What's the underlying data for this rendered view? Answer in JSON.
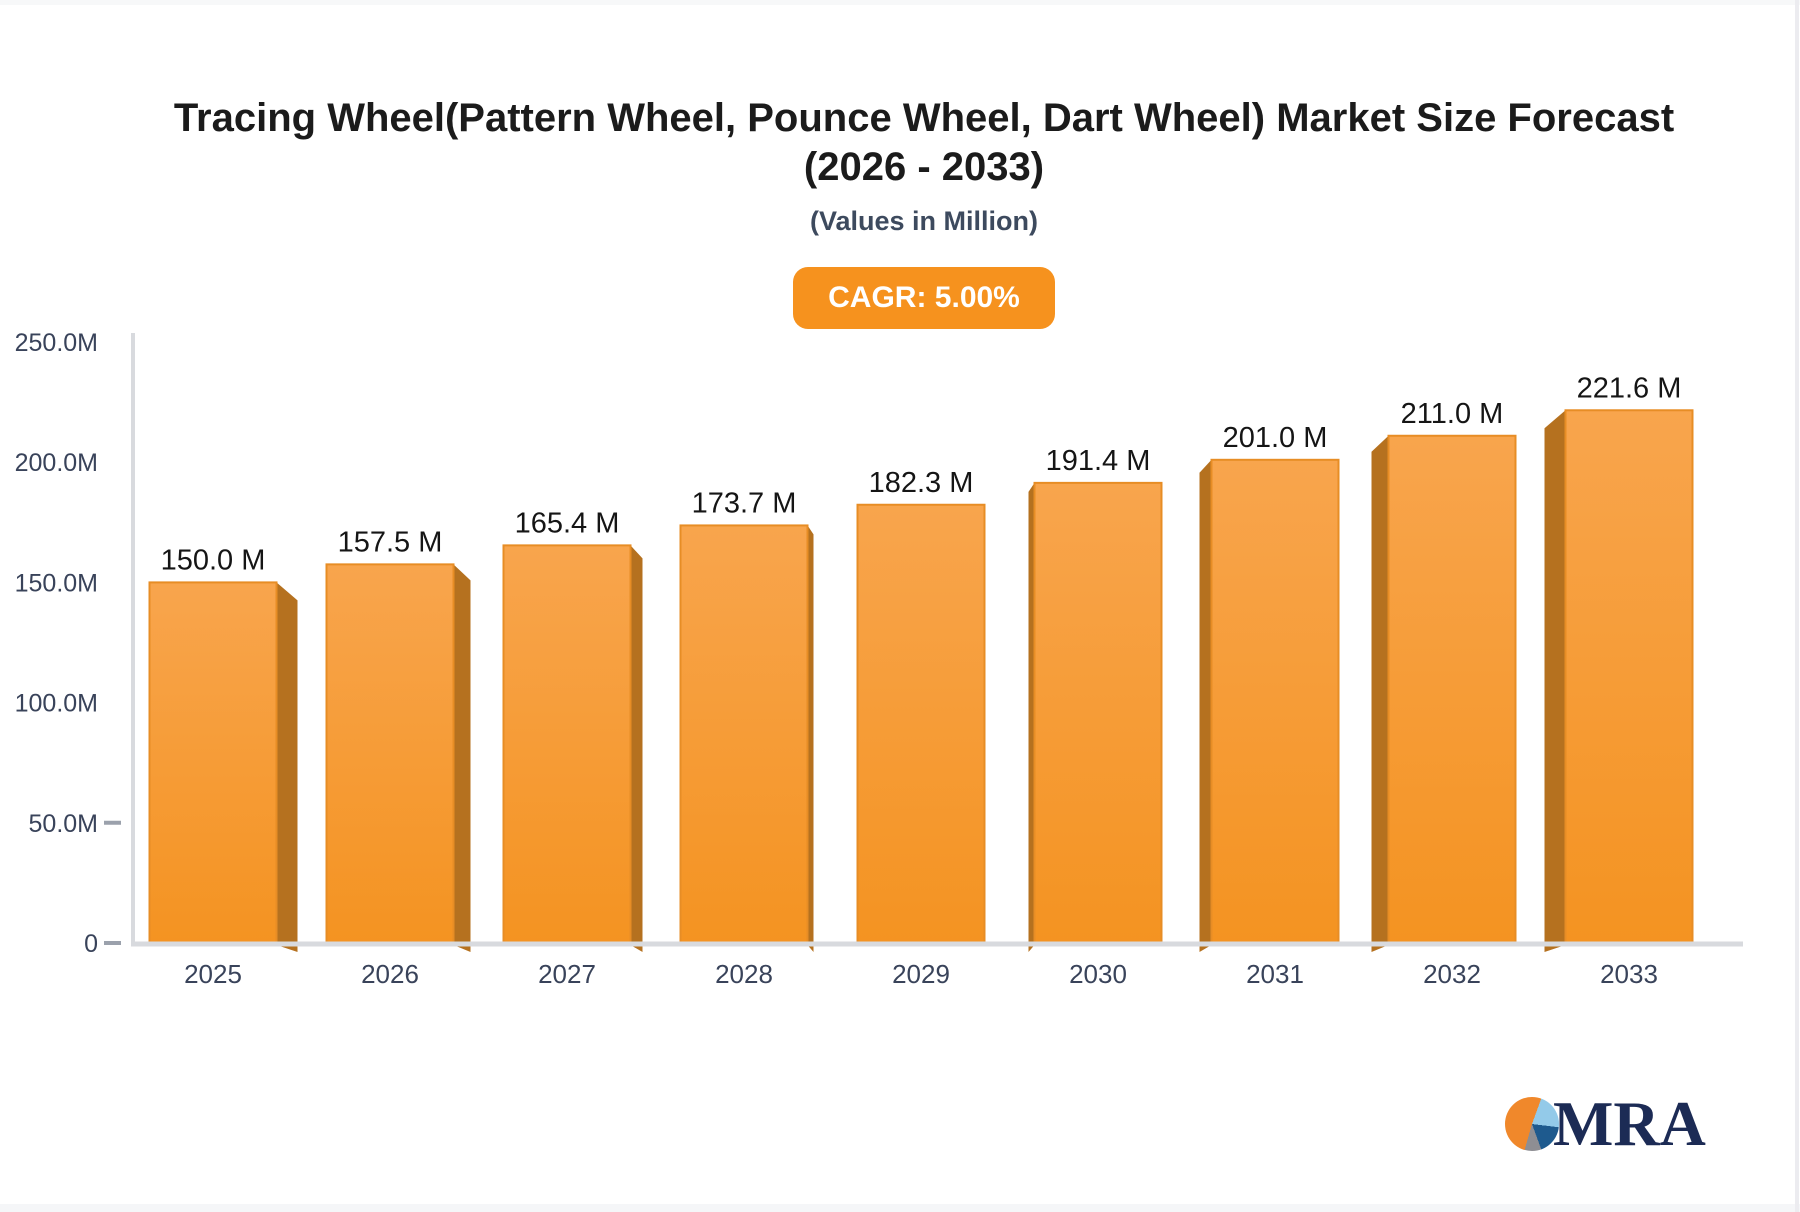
{
  "header": {
    "title_line1": "Tracing Wheel(Pattern Wheel, Pounce Wheel, Dart Wheel) Market Size Forecast",
    "title_line2": "(2026 - 2033)",
    "subtitle": "(Values in Million)",
    "cagr_badge": "CAGR: 5.00%"
  },
  "chart_data": {
    "type": "bar",
    "title": "Tracing Wheel(Pattern Wheel, Pounce Wheel, Dart Wheel) Market Size Forecast (2026 - 2033)",
    "subtitle": "(Values in Million)",
    "cagr_label": "CAGR: 5.00%",
    "unit": "Million",
    "categories": [
      "2025",
      "2026",
      "2027",
      "2028",
      "2029",
      "2030",
      "2031",
      "2032",
      "2033"
    ],
    "values": [
      150.0,
      157.5,
      165.4,
      173.7,
      182.3,
      191.4,
      201.0,
      211.0,
      221.6
    ],
    "value_labels": [
      "150.0 M",
      "157.5 M",
      "165.4 M",
      "173.7 M",
      "182.3 M",
      "191.4 M",
      "201.0 M",
      "211.0 M",
      "221.6 M"
    ],
    "yticks": [
      {
        "label": "0",
        "value": 0,
        "tick": true
      },
      {
        "label": "50.0M",
        "value": 50,
        "tick": true
      },
      {
        "label": "100.0M",
        "value": 100,
        "tick": false
      },
      {
        "label": "150.0M",
        "value": 150,
        "tick": false
      },
      {
        "label": "200.0M",
        "value": 200,
        "tick": false
      },
      {
        "label": "250.0M",
        "value": 250,
        "tick": false
      }
    ],
    "ylim": [
      0,
      250
    ],
    "grid": false,
    "legend": false,
    "bar_style": "3d-column",
    "colors": {
      "bar_gradient_top": "#f8a54d",
      "bar_gradient_bottom": "#f49321",
      "bar_border": "#e78d25",
      "bar_side": "#b5711f",
      "axis_line": "#d8dade",
      "tick_dash": "#9ba1ac",
      "value_label": "#151515",
      "axis_label": "#39435a"
    }
  },
  "logo": {
    "text": "MRA",
    "pie_colors": {
      "orange": "#f0882b",
      "light_blue": "#93cae9",
      "navy": "#1e5a8e",
      "gray": "#8e8e93"
    }
  }
}
